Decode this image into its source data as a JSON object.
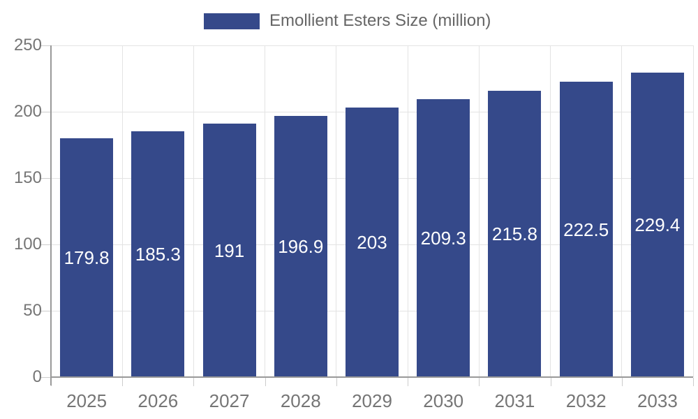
{
  "legend": {
    "label": "Emollient Esters Size (million)",
    "swatch_color": "#35498A"
  },
  "chart_data": {
    "type": "bar",
    "title": "Emollient Esters Size (million)",
    "categories": [
      "2025",
      "2026",
      "2027",
      "2028",
      "2029",
      "2030",
      "2031",
      "2032",
      "2033"
    ],
    "values": [
      179.8,
      185.3,
      191,
      196.9,
      203,
      209.3,
      215.8,
      222.5,
      229.4
    ],
    "xlabel": "",
    "ylabel": "",
    "ylim": [
      0,
      250
    ],
    "yticks": [
      0,
      50,
      100,
      150,
      200,
      250
    ],
    "grid": true,
    "legend_position": "top",
    "bar_color": "#35498A",
    "value_label_color": "#ffffff",
    "axis_label_color": "#757575"
  }
}
